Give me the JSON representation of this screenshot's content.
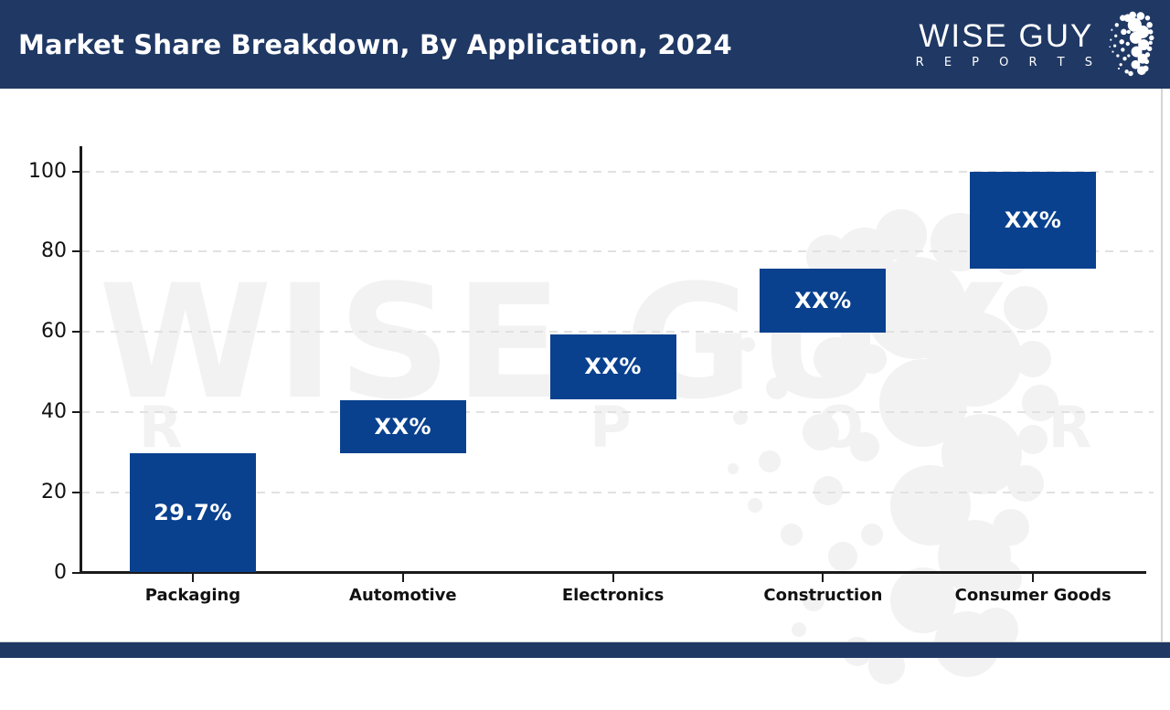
{
  "header": {
    "title": "Market Share Breakdown, By Application, 2024",
    "brand": {
      "line1": "WISE GUY",
      "line2": "R E P O R T S"
    }
  },
  "watermark": {
    "line1": "WISE GUY",
    "line2": "R E P O R T S"
  },
  "colors": {
    "header_navy": "#1F3864",
    "bar_blue": "#09418F",
    "grid_gray": "#E1E1E1",
    "axis_black": "#1A1A1A",
    "watermark_gray": "#F2F2F2",
    "bar_label_white": "#FFFFFF"
  },
  "chart_data": {
    "type": "bar",
    "subtype": "floating-waterfall",
    "title": "Market Share Breakdown, By Application, 2024",
    "xlabel": "",
    "ylabel": "",
    "categories": [
      "Packaging",
      "Automotive",
      "Electronics",
      "Construction",
      "Consumer Goods"
    ],
    "series": [
      {
        "name": "Market Share (%)",
        "segments": [
          {
            "category": "Packaging",
            "start": 0,
            "end": 29.7,
            "label": "29.7%"
          },
          {
            "category": "Automotive",
            "start": 29.7,
            "end": 43.0,
            "label": "XX%"
          },
          {
            "category": "Electronics",
            "start": 43.2,
            "end": 59.4,
            "label": "XX%"
          },
          {
            "category": "Construction",
            "start": 59.8,
            "end": 75.7,
            "label": "XX%"
          },
          {
            "category": "Consumer Goods",
            "start": 75.7,
            "end": 100.0,
            "label": "XX%"
          }
        ]
      }
    ],
    "ylim": [
      0,
      100
    ],
    "yticks": [
      0,
      20,
      40,
      60,
      80,
      100
    ],
    "grid": true,
    "grid_style": "dashed",
    "legend": "none"
  }
}
